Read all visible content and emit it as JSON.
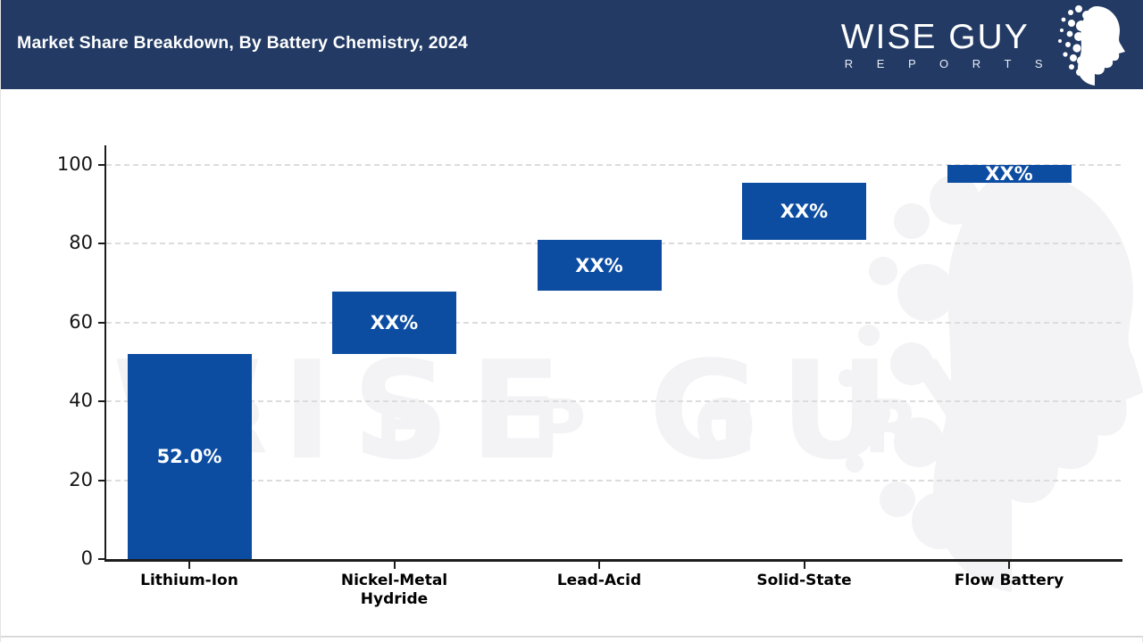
{
  "header": {
    "title": "Market Share Breakdown, By Battery Chemistry, 2024",
    "logo_line1": "WISE GUY",
    "logo_line2": "R E P O R T S",
    "bg_color": "#223a64"
  },
  "watermark": {
    "line1": "WISE GUY",
    "line2": "R E P O R T S"
  },
  "chart_data": {
    "type": "bar",
    "subtype": "waterfall",
    "title": "Market Share Breakdown, By Battery Chemistry, 2024",
    "categories": [
      "Lithium-Ion",
      "Nickel-Metal Hydride",
      "Lead-Acid",
      "Solid-State",
      "Flow Battery"
    ],
    "segments": [
      {
        "category": "Lithium-Ion",
        "start": 0,
        "end": 52,
        "label": "52.0%"
      },
      {
        "category": "Nickel-Metal Hydride",
        "start": 52,
        "end": 68,
        "label": "XX%"
      },
      {
        "category": "Lead-Acid",
        "start": 68,
        "end": 81,
        "label": "XX%"
      },
      {
        "category": "Solid-State",
        "start": 81,
        "end": 95.5,
        "label": "XX%"
      },
      {
        "category": "Flow Battery",
        "start": 95.5,
        "end": 100,
        "label": "XX%"
      }
    ],
    "y_ticks": [
      0,
      20,
      40,
      60,
      80,
      100
    ],
    "ylim": [
      0,
      105
    ],
    "xlabel": "",
    "ylabel": "",
    "bar_color": "#0c4da2",
    "bar_label_color": "#ffffff",
    "grid": "horizontal-dashed",
    "legend": "none"
  }
}
